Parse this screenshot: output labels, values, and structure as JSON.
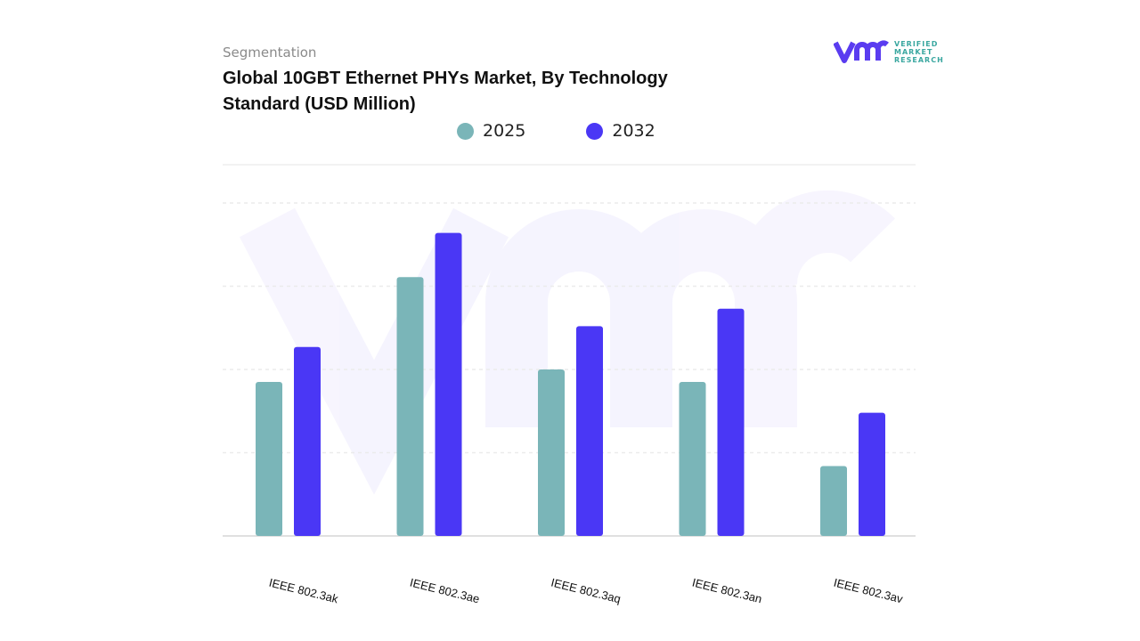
{
  "header": {
    "segment_label": "Segmentation",
    "title": "Global 10GBT Ethernet PHYs Market, By Technology Standard (USD Million)"
  },
  "logo": {
    "text_lines": [
      "VERIFIED",
      "MARKET",
      "RESEARCH"
    ],
    "mark": "vmr"
  },
  "chart_data": {
    "type": "bar",
    "title": "Global 10GBT Ethernet PHYs Market, By Technology Standard (USD Million)",
    "categories": [
      "IEEE 802.3ak",
      "IEEE 802.3ae",
      "IEEE 802.3aq",
      "IEEE 802.3an",
      "IEEE 802.3av"
    ],
    "series": [
      {
        "name": "2025",
        "color": "#7ab5b8",
        "values": [
          1.85,
          3.11,
          2.0,
          1.85,
          0.84
        ]
      },
      {
        "name": "2032",
        "color": "#4a37f5",
        "values": [
          2.27,
          3.64,
          2.52,
          2.73,
          1.48
        ]
      }
    ],
    "ylim": [
      0,
      4
    ],
    "y_ticks_labeled": false,
    "grid": true,
    "legend_position": "top-center",
    "xlabel": "",
    "ylabel": ""
  }
}
